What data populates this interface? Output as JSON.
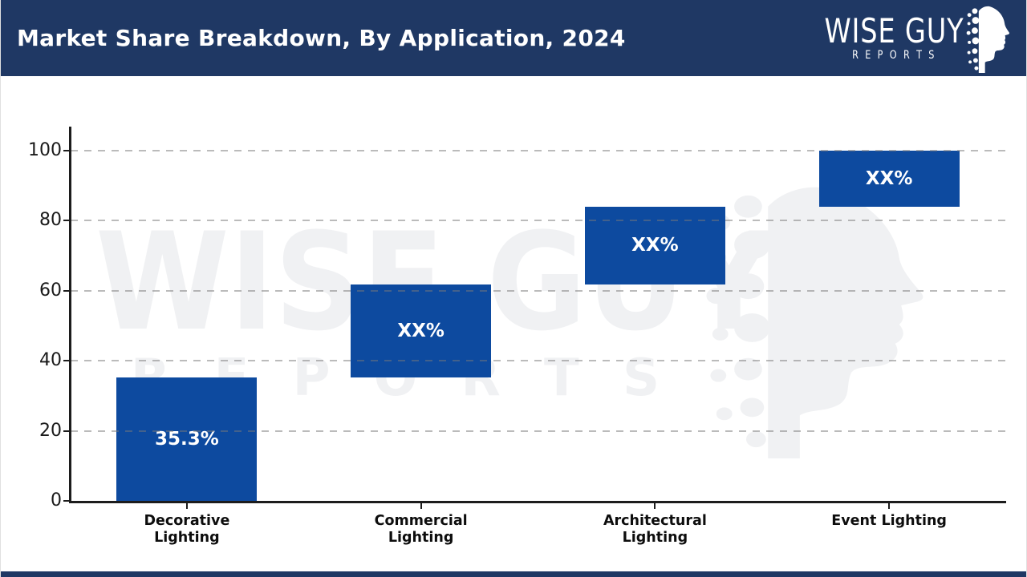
{
  "header": {
    "title": "Market Share Breakdown, By Application, 2024",
    "logo_line1": "WISE GUY",
    "logo_line2": "R E P O R T S"
  },
  "watermark": {
    "line1": "WISE GUY",
    "line2": "R E P O R T S"
  },
  "colors": {
    "header_bg": "#1f3864",
    "footer_bg": "#1f3864",
    "bar_blue": "#0d4a9f",
    "watermark_gray": "#f0f1f3",
    "axis_black": "#1c1c1c"
  },
  "chart_data": {
    "type": "bar",
    "subtype": "waterfall-segments",
    "title": "Market Share Breakdown, By Application, 2024",
    "categories": [
      "Decorative Lighting",
      "Commercial Lighting",
      "Architectural Lighting",
      "Event Lighting"
    ],
    "category_label_lines": [
      [
        "Decorative",
        "Lighting"
      ],
      [
        "Commercial",
        "Lighting"
      ],
      [
        "Architectural",
        "Lighting"
      ],
      [
        "Event Lighting"
      ]
    ],
    "segments": [
      {
        "category": "Decorative Lighting",
        "from": 0,
        "to": 35.3,
        "label": "35.3%"
      },
      {
        "category": "Commercial Lighting",
        "from": 35.3,
        "to": 61.8,
        "label": "XX%"
      },
      {
        "category": "Architectural Lighting",
        "from": 61.8,
        "to": 84.0,
        "label": "XX%"
      },
      {
        "category": "Event Lighting",
        "from": 84.0,
        "to": 100.0,
        "label": "XX%"
      }
    ],
    "ylim": [
      0,
      100
    ],
    "yticks": [
      0,
      20,
      40,
      60,
      80,
      100
    ],
    "grid": "dashed-horizontal",
    "legend": "none",
    "bar_color": "#0d4a9f"
  }
}
